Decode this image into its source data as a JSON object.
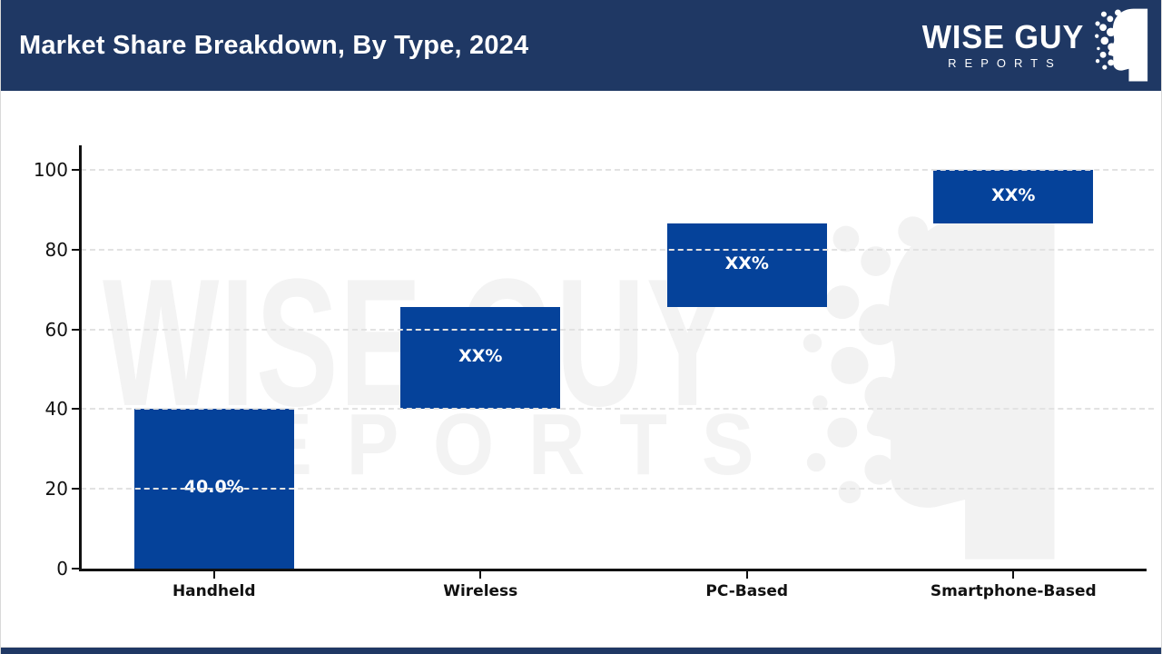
{
  "header": {
    "title": "Market Share Breakdown, By Type, 2024",
    "logo": {
      "line1": "WISE GUY",
      "line2": "REPORTS"
    }
  },
  "watermark": {
    "line1": "WISE GUY",
    "line2": "REPORTS"
  },
  "chart_data": {
    "type": "bar",
    "subtype": "waterfall-floating-bars",
    "title": "Market Share Breakdown, By Type, 2024",
    "categories": [
      "Handheld",
      "Wireless",
      "PC-Based",
      "Smartphone-Based"
    ],
    "segments": [
      {
        "category": "Handheld",
        "start": 0,
        "end": 40,
        "label": "40.0%"
      },
      {
        "category": "Wireless",
        "start": 40,
        "end": 65.5,
        "label": "XX%"
      },
      {
        "category": "PC-Based",
        "start": 65.5,
        "end": 86.5,
        "label": "XX%"
      },
      {
        "category": "Smartphone-Based",
        "start": 86.5,
        "end": 100,
        "label": "XX%"
      }
    ],
    "yticks": [
      0,
      20,
      40,
      60,
      80,
      100
    ],
    "ylim": [
      0,
      106
    ],
    "xlabel": "",
    "ylabel": "",
    "grid": "horizontal-dashed",
    "legend": "none",
    "bar_color": "#05429A",
    "bar_label_color": "#ffffff",
    "axis_color": "#111111",
    "header_color": "#1f3864"
  }
}
